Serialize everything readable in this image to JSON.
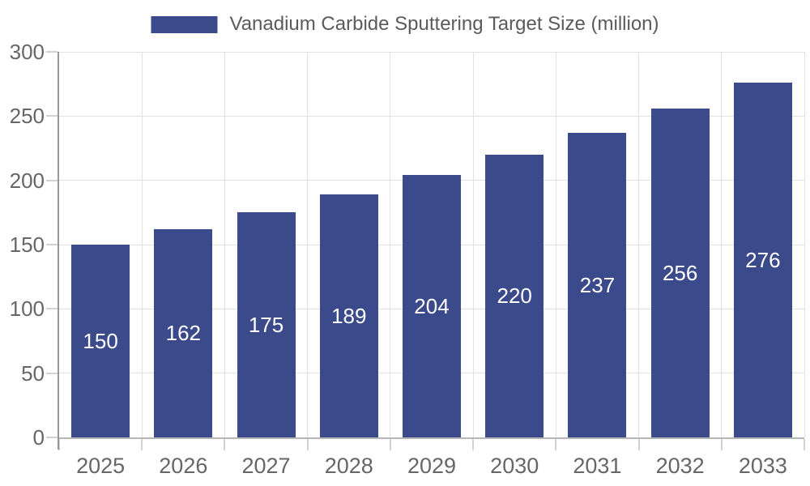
{
  "chart_data": {
    "type": "bar",
    "title": "Vanadium Carbide Sputtering Target Size (million)",
    "categories": [
      "2025",
      "2026",
      "2027",
      "2028",
      "2029",
      "2030",
      "2031",
      "2032",
      "2033"
    ],
    "values": [
      150,
      162,
      175,
      189,
      204,
      220,
      237,
      256,
      276
    ],
    "xlabel": "",
    "ylabel": "",
    "ylim": [
      0,
      300
    ],
    "y_ticks": [
      0,
      50,
      100,
      150,
      200,
      250,
      300
    ],
    "grid": true,
    "legend_position": "top",
    "bar_color": "#3A4A8A",
    "bar_label_color": "#ffffff",
    "gridline_color": "#e2e2e2",
    "y_axis_color": "#979797",
    "x_axis_color": "#b6b6b6",
    "tick_color": "#d2d2d2",
    "tick_label_color": "#666666",
    "legend_text_color": "#5b5b5b"
  }
}
